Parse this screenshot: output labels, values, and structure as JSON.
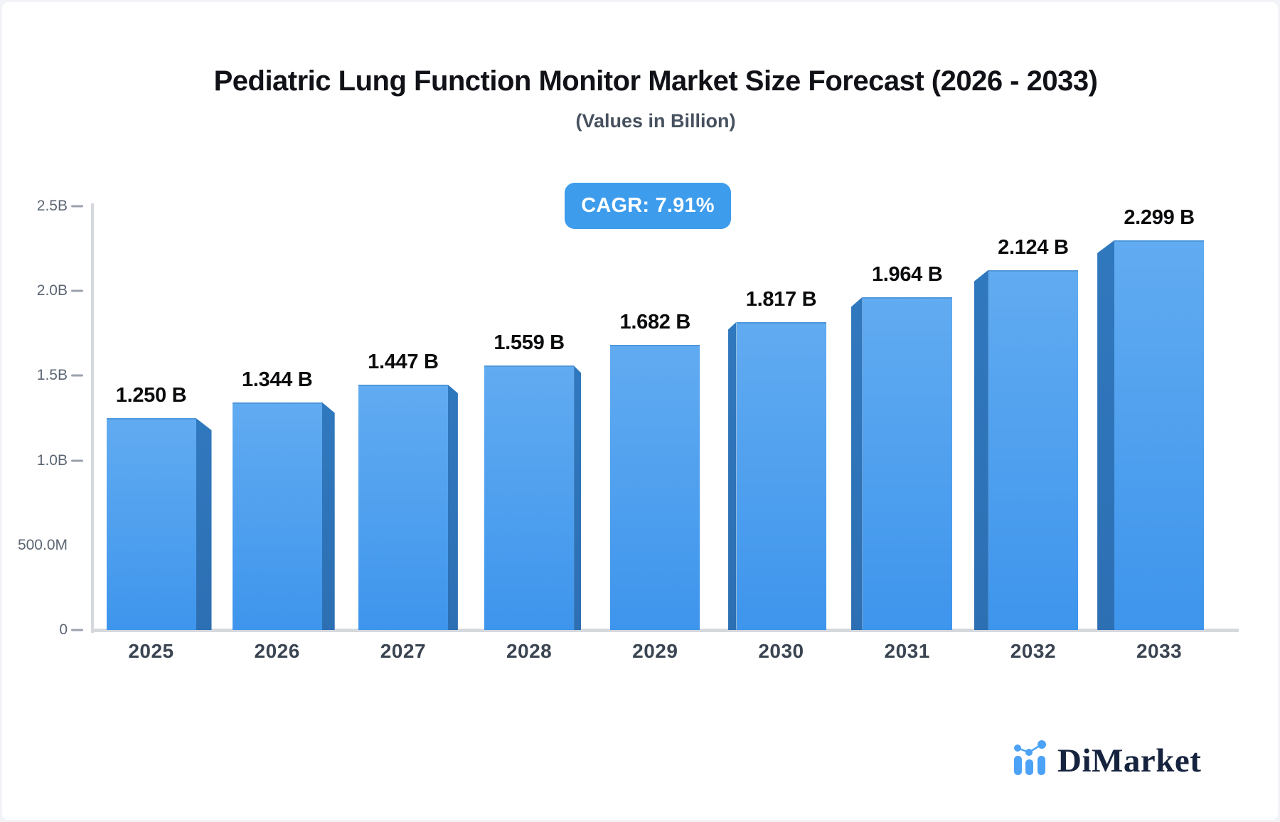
{
  "title": {
    "text": "Pediatric Lung Function Monitor Market Size Forecast (2026 - 2033)",
    "subtitle": "(Values in Billion)"
  },
  "badge": {
    "label": "CAGR: 7.91%",
    "bg_color": "#3e9cec",
    "text_color": "#ffffff"
  },
  "logo": {
    "brand": "DiMarket",
    "icon": "bar-chart-logo-icon",
    "icon_color": "#4ca2f6",
    "text_color": "#16233e"
  },
  "chart_data": {
    "type": "bar",
    "title": "Pediatric Lung Function Monitor Market Size Forecast (2026 - 2033)",
    "subtitle": "(Values in Billion)",
    "xlabel": "",
    "ylabel": "",
    "unit": "Billion",
    "categories": [
      "2025",
      "2026",
      "2027",
      "2028",
      "2029",
      "2030",
      "2031",
      "2032",
      "2033"
    ],
    "values": [
      1.25,
      1.344,
      1.447,
      1.559,
      1.682,
      1.817,
      1.964,
      2.124,
      2.299
    ],
    "value_labels": [
      "1.250 B",
      "1.344 B",
      "1.447 B",
      "1.559 B",
      "1.682 B",
      "1.817 B",
      "1.964 B",
      "2.124 B",
      "2.299 B"
    ],
    "ylim": [
      0,
      2.5
    ],
    "yticks": [
      {
        "value": 0.0,
        "label": "0",
        "dash": true
      },
      {
        "value": 0.5,
        "label": "500.0M",
        "dash": false
      },
      {
        "value": 1.0,
        "label": "1.0B",
        "dash": true
      },
      {
        "value": 1.5,
        "label": "1.5B",
        "dash": true
      },
      {
        "value": 2.0,
        "label": "2.0B",
        "dash": true
      },
      {
        "value": 2.5,
        "label": "2.5B",
        "dash": true
      }
    ],
    "grid": false,
    "legend": false,
    "colors": {
      "bar_face_top": "#61abf1",
      "bar_face_bottom": "#3e95ec",
      "bar_bevel_top": "#3078be",
      "bar_bevel_bottom": "#2d6fb3",
      "axis_line": "#d5d9de",
      "tick_dash": "#9aa2ac",
      "ytick_text": "#5c6673",
      "xtick_text": "#3a4452",
      "value_text": "#0b0c0e"
    }
  }
}
